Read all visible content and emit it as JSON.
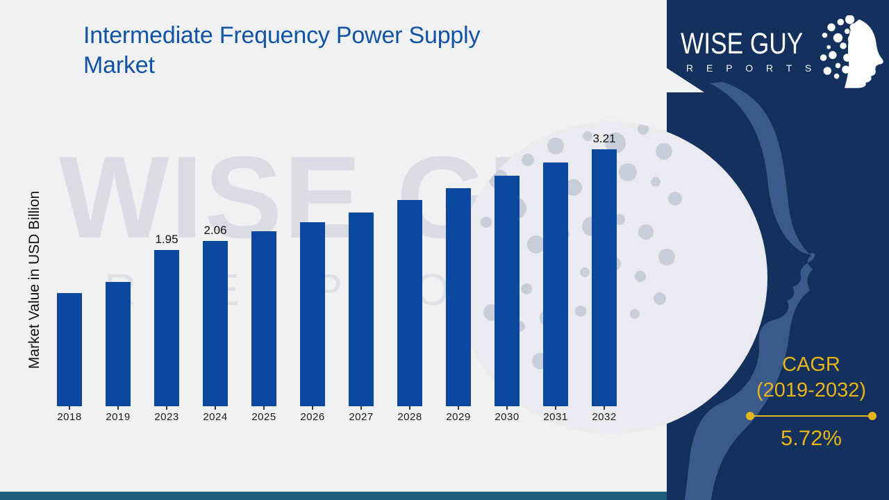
{
  "page": {
    "colors": {
      "background": "#eff1f3",
      "navy": "#14305c",
      "teal": "#20607e",
      "bar_blue": "#0b49a1",
      "gold": "#e7b518",
      "title_blue": "#1353a4",
      "face_blue": "#3b5a8c"
    }
  },
  "header": {
    "title_line1": "Intermediate Frequency Power Supply",
    "title_line2": "Market"
  },
  "logo": {
    "brand": "WISE GUY",
    "sub": "R E P O R T S"
  },
  "watermark": {
    "brand": "WISE GUY",
    "sub": "R E P O R T S"
  },
  "y_axis": {
    "label": "Market Value in USD Billion"
  },
  "chart_data": {
    "type": "bar",
    "title": "Intermediate Frequency Power Supply Market",
    "xlabel": "",
    "ylabel": "Market Value in USD Billion",
    "categories": [
      "2018",
      "2019",
      "2023",
      "2024",
      "2025",
      "2026",
      "2027",
      "2028",
      "2029",
      "2030",
      "2031",
      "2032"
    ],
    "values": [
      1.41,
      1.55,
      1.95,
      2.06,
      2.18,
      2.3,
      2.42,
      2.57,
      2.72,
      2.88,
      3.04,
      3.21
    ],
    "data_labels": {
      "2023": "1.95",
      "2024": "2.06",
      "2032": "3.21"
    },
    "ylim": [
      0,
      3.5
    ],
    "grid": false,
    "legend": false,
    "bar_color": "#0b49a1"
  },
  "cagr": {
    "label": "CAGR",
    "range": "(2019-2032)",
    "value": "5.72%"
  }
}
